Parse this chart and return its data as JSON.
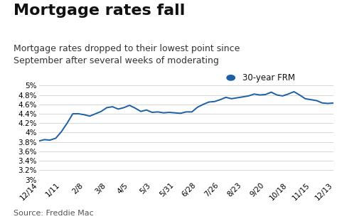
{
  "title": "Mortgage rates fall",
  "subtitle": "Mortgage rates dropped to their lowest point since\nSeptember after several weeks of moderating",
  "source": "Source: Freddie Mac",
  "legend_label": "30-year FRM",
  "line_color": "#1c5fa5",
  "legend_dot_color": "#1c5fa5",
  "x_labels": [
    "12/14",
    "1/11",
    "2/8",
    "3/8",
    "4/5",
    "5/3",
    "5/31",
    "6/28",
    "7/26",
    "8/23",
    "9/20",
    "10/18",
    "11/15",
    "12/13"
  ],
  "x_tick_positions": [
    0,
    4,
    8,
    12,
    16,
    20,
    24,
    28,
    32,
    36,
    40,
    44,
    48,
    52
  ],
  "y_values": [
    3.82,
    3.85,
    3.84,
    3.88,
    4.02,
    4.2,
    4.4,
    4.4,
    4.38,
    4.35,
    4.4,
    4.45,
    4.53,
    4.55,
    4.5,
    4.53,
    4.58,
    4.52,
    4.45,
    4.48,
    4.43,
    4.44,
    4.42,
    4.43,
    4.42,
    4.41,
    4.44,
    4.44,
    4.54,
    4.6,
    4.65,
    4.66,
    4.7,
    4.75,
    4.72,
    4.74,
    4.76,
    4.78,
    4.82,
    4.8,
    4.81,
    4.86,
    4.8,
    4.78,
    4.82,
    4.87,
    4.8,
    4.72,
    4.7,
    4.68,
    4.63,
    4.62,
    4.63
  ],
  "ylim": [
    3.0,
    5.05
  ],
  "yticks": [
    3.0,
    3.2,
    3.4,
    3.6,
    3.8,
    4.0,
    4.2,
    4.4,
    4.6,
    4.8,
    5.0
  ],
  "ytick_labels": [
    "3%",
    "3.2%",
    "3.4%",
    "3.6%",
    "3.8%",
    "4%",
    "4.2%",
    "4.4%",
    "4.6%",
    "4.8%",
    "5%"
  ],
  "background_color": "#ffffff",
  "grid_color": "#c8c8c8",
  "title_fontsize": 16,
  "subtitle_fontsize": 9,
  "source_fontsize": 8,
  "tick_fontsize": 7.5
}
